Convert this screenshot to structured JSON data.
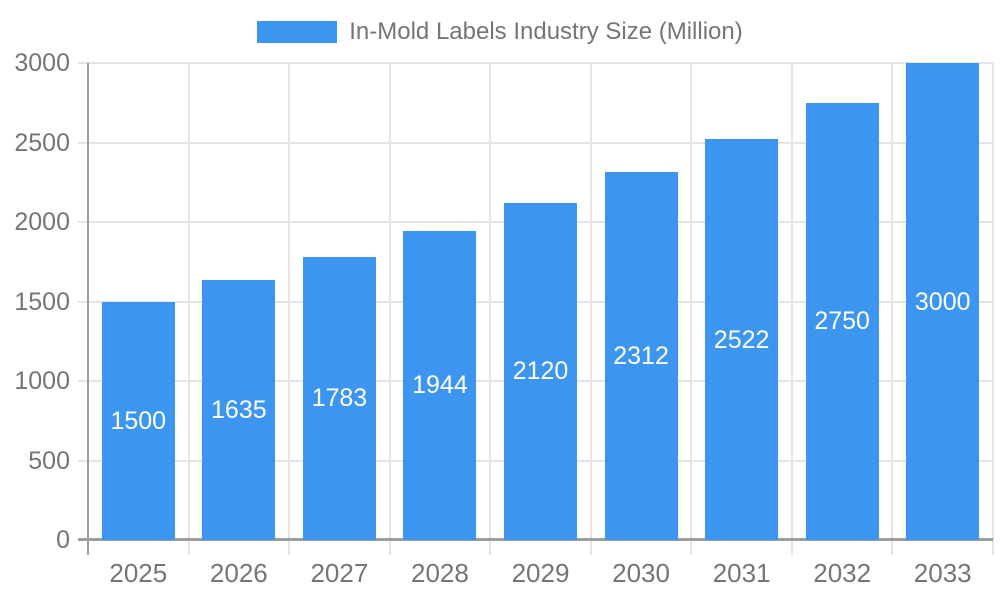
{
  "chart_data": {
    "type": "bar",
    "title": "In-Mold Labels Industry Size (Million)",
    "categories": [
      "2025",
      "2026",
      "2027",
      "2028",
      "2029",
      "2030",
      "2031",
      "2032",
      "2033"
    ],
    "values": [
      1500,
      1635,
      1783,
      1944,
      2120,
      2312,
      2522,
      2750,
      3000
    ],
    "xlabel": "",
    "ylabel": "",
    "ylim": [
      0,
      3000
    ],
    "yticks": [
      0,
      500,
      1000,
      1500,
      2000,
      2500,
      3000
    ],
    "grid": true,
    "legend_position": "top",
    "value_labels": "inside-center-white",
    "colors": {
      "bar": "#3C96F0",
      "value_label": "#FFFFFF",
      "axis_text": "#757575",
      "gridline": "#E4E4E4",
      "axis_line": "#9E9E9E",
      "background": "#FFFFFF"
    }
  }
}
